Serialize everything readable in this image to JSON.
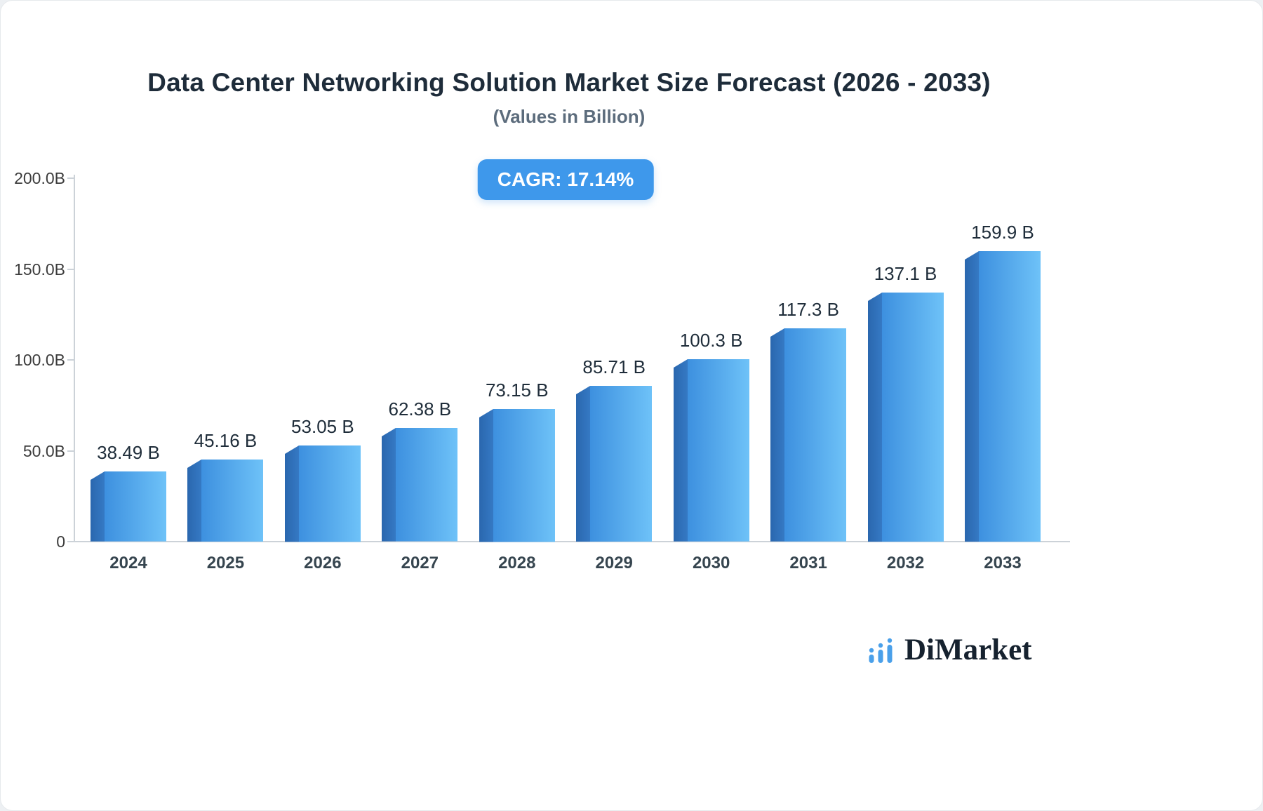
{
  "chart_data": {
    "type": "bar",
    "title": "Data Center Networking Solution Market Size Forecast (2026 - 2033)",
    "subtitle": "(Values in Billion)",
    "cagr_label": "CAGR: 17.14%",
    "categories": [
      "2024",
      "2025",
      "2026",
      "2027",
      "2028",
      "2029",
      "2030",
      "2031",
      "2032",
      "2033"
    ],
    "values": [
      38.49,
      45.16,
      53.05,
      62.38,
      73.15,
      85.71,
      100.3,
      117.3,
      137.1,
      159.9
    ],
    "value_labels": [
      "38.49 B",
      "45.16 B",
      "53.05 B",
      "62.38 B",
      "73.15 B",
      "85.71 B",
      "100.3 B",
      "117.3 B",
      "137.1 B",
      "159.9 B"
    ],
    "ytick_values": [
      0,
      50,
      100,
      150,
      200
    ],
    "ytick_labels": [
      "0",
      "50.0B",
      "100.0B",
      "150.0B",
      "200.0B"
    ],
    "ylim": [
      0,
      200
    ],
    "xlabel": "",
    "ylabel": "",
    "grid": false,
    "legend": false,
    "colors": {
      "bar_front_dark": "#3d90df",
      "bar_front_light": "#6ec2f8",
      "bar_side_dark": "#2a67ae",
      "bar_side_light": "#3579c4",
      "badge_bg": "#3e98eb",
      "axis": "#ccd2d8"
    }
  },
  "logo": {
    "text": "DiMarket"
  }
}
